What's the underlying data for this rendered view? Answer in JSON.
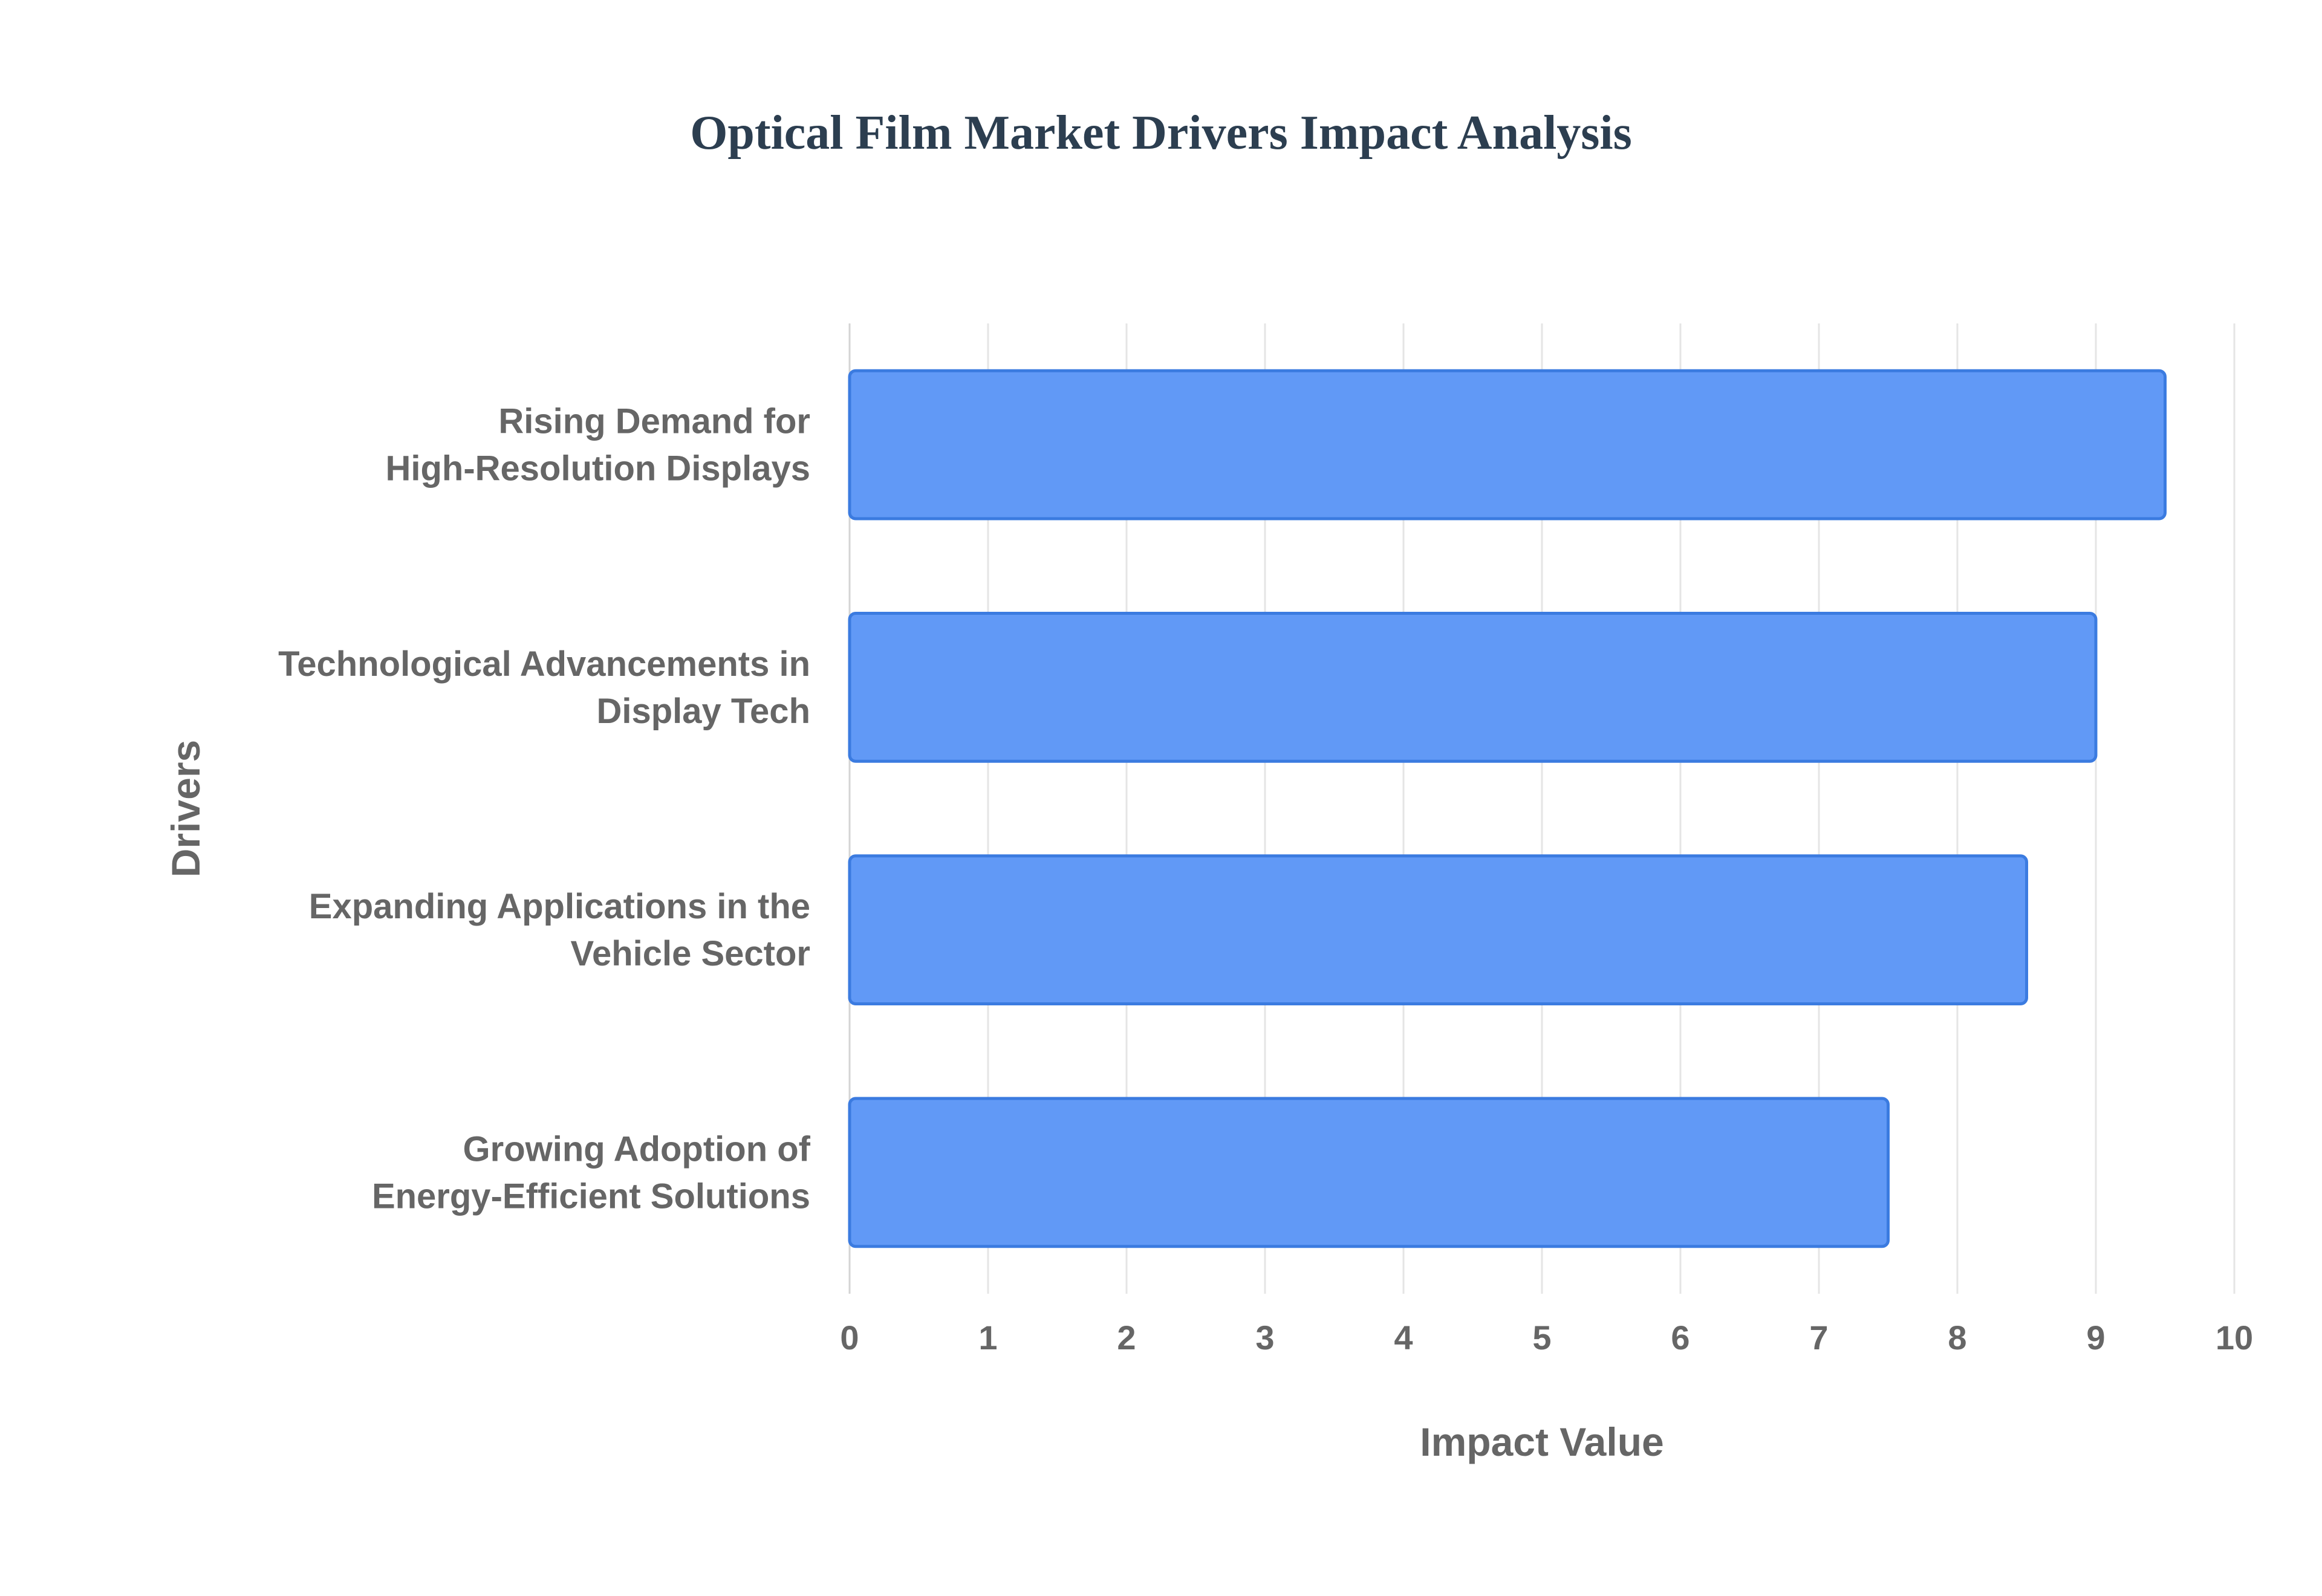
{
  "chart_data": {
    "type": "bar",
    "orientation": "horizontal",
    "title": "Optical Film Market Drivers Impact Analysis",
    "xlabel": "Impact Value",
    "ylabel": "Drivers",
    "categories": [
      [
        "Rising Demand for",
        "High-Resolution Displays"
      ],
      [
        "Technological Advancements in",
        "Display Tech"
      ],
      [
        "Expanding Applications in the",
        "Vehicle Sector"
      ],
      [
        "Growing Adoption of",
        "Energy-Efficient Solutions"
      ]
    ],
    "values": [
      9.5,
      9.0,
      8.5,
      7.5
    ],
    "xlim": [
      0,
      10
    ],
    "xticks": [
      "0",
      "1",
      "2",
      "3",
      "4",
      "5",
      "6",
      "7",
      "8",
      "9",
      "10"
    ],
    "grid": true,
    "bar_color": "#6199f6",
    "bar_border_color": "#3b7be0",
    "text_color": "#666666",
    "title_color": "#2c3e50",
    "grid_color": "#e5e5e5"
  }
}
